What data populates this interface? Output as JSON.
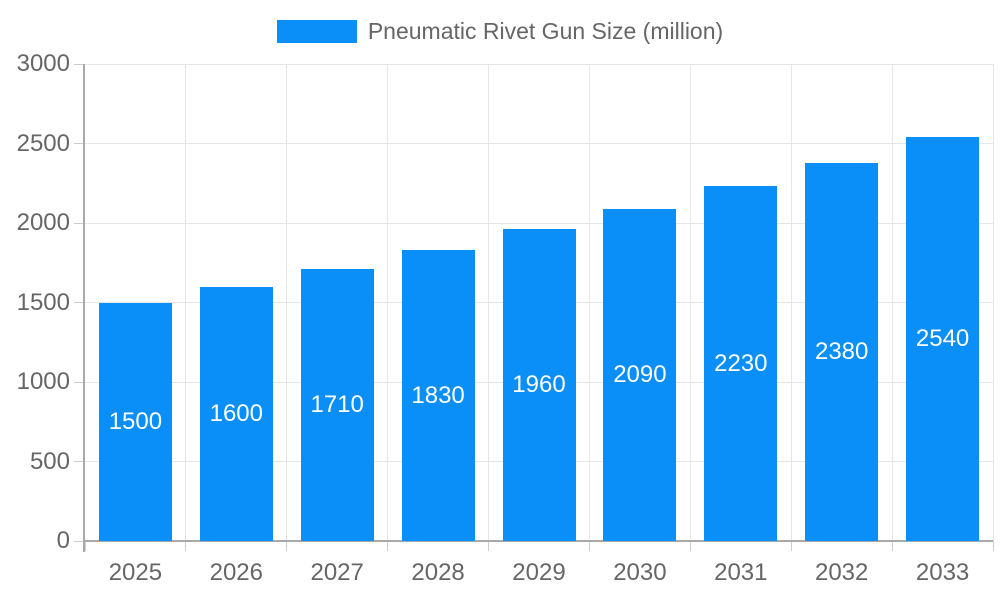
{
  "chart_data": {
    "type": "bar",
    "title": "Pneumatic Rivet Gun Size (million)",
    "legend": {
      "label": "Pneumatic Rivet Gun Size (million)",
      "position": "top-center"
    },
    "categories": [
      "2025",
      "2026",
      "2027",
      "2028",
      "2029",
      "2030",
      "2031",
      "2032",
      "2033"
    ],
    "values": [
      1500,
      1600,
      1710,
      1830,
      1960,
      2090,
      2230,
      2380,
      2540
    ],
    "xlabel": "",
    "ylabel": "",
    "ylim": [
      0,
      3000
    ],
    "yticks": [
      0,
      500,
      1000,
      1500,
      2000,
      2500,
      3000
    ],
    "grid": true,
    "bar_value_labels_inside": true,
    "colors": {
      "bar": "#0a8ef8",
      "bar_value_label": "#ffffff",
      "axis_text": "#666666",
      "grid_line": "#e6e6e6",
      "axis_line": "#a9a9a9",
      "tick": "#cccccc"
    }
  }
}
